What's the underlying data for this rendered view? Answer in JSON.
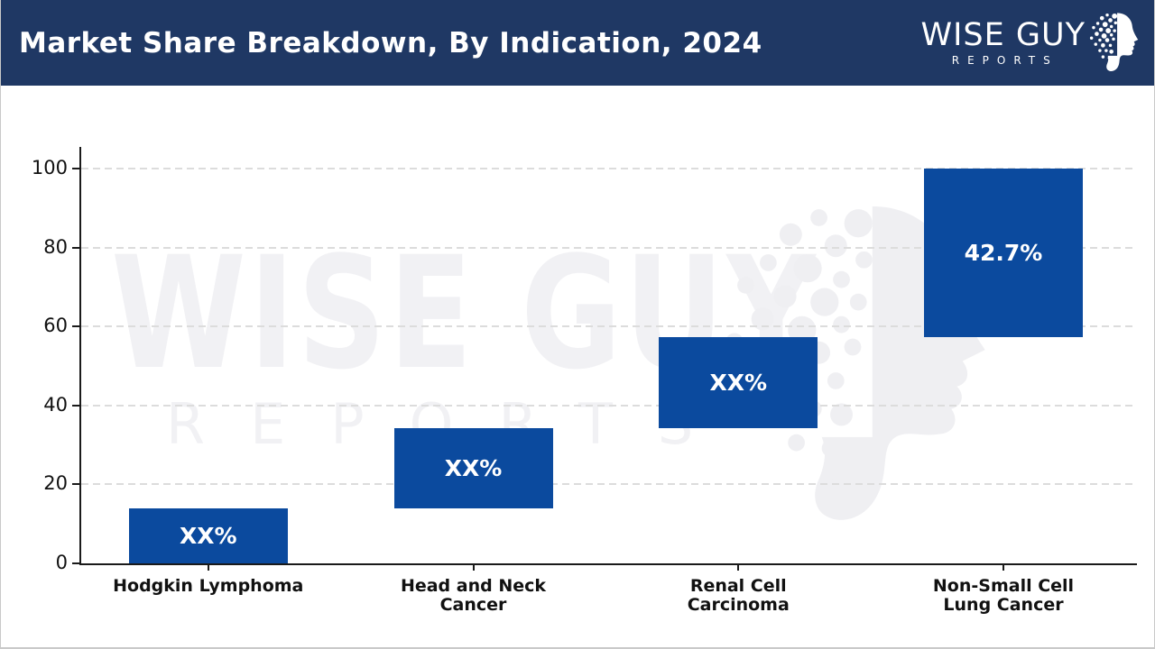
{
  "header": {
    "title": "Market Share Breakdown, By Indication, 2024",
    "logo": {
      "line1": "WISE GUY",
      "line2": "REPORTS"
    }
  },
  "watermark": {
    "line1": "WISE GUY",
    "line2": "REPORTS"
  },
  "chart_data": {
    "type": "bar",
    "subtype": "waterfall-floating-bars",
    "title": "Market Share Breakdown, By Indication, 2024",
    "categories": [
      [
        "Hodgkin Lymphoma"
      ],
      [
        "Head and Neck",
        "Cancer"
      ],
      [
        "Renal Cell",
        "Carcinoma"
      ],
      [
        "Non-Small Cell",
        "Lung Cancer"
      ]
    ],
    "segments": [
      {
        "start": 0,
        "end": 13.9,
        "label": "XX%"
      },
      {
        "start": 13.9,
        "end": 34.2,
        "label": "XX%"
      },
      {
        "start": 34.3,
        "end": 57.3,
        "label": "XX%"
      },
      {
        "start": 57.3,
        "end": 100,
        "label": "42.7%"
      }
    ],
    "xlabel": "",
    "ylabel": "",
    "yticks": [
      0,
      20,
      40,
      60,
      80,
      100
    ],
    "ylim": [
      0,
      105
    ],
    "grid": "horizontal-dashed",
    "legend": "none",
    "bar_color": "#0b4a9e",
    "bar_label_color": "#ffffff",
    "axis_color": "#1a1a1a",
    "gridline_color": "#dcdcdc"
  },
  "colors": {
    "header_bg": "#1f3864",
    "page_bg": "#ffffff",
    "watermark": "#f1f1f4",
    "border": "#c9c9c9"
  }
}
